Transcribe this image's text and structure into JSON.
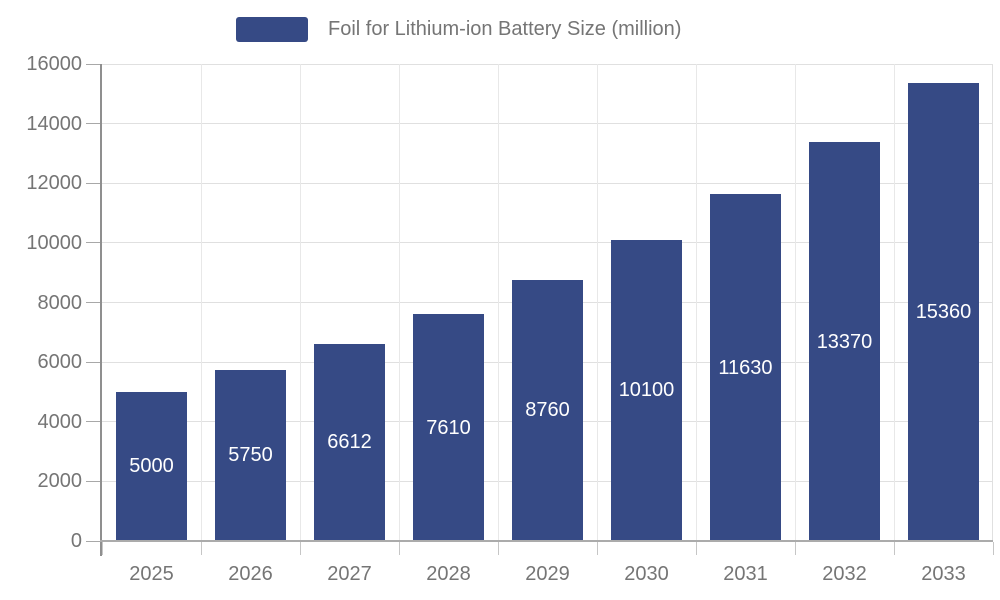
{
  "legend": {
    "items": [
      {
        "label": "Foil for Lithium-ion Battery Size (million)",
        "color": "#364A85"
      }
    ],
    "position": "top-center"
  },
  "chart_data": {
    "type": "bar",
    "title": "",
    "xlabel": "",
    "ylabel": "",
    "series_name": "Foil for Lithium-ion Battery Size (million)",
    "categories": [
      "2025",
      "2026",
      "2027",
      "2028",
      "2029",
      "2030",
      "2031",
      "2032",
      "2033"
    ],
    "values": [
      5000,
      5750,
      6612,
      7610,
      8760,
      10100,
      11630,
      13370,
      15360
    ],
    "value_labels_shown": true,
    "ylim": [
      0,
      16000
    ],
    "yticks": [
      0,
      2000,
      4000,
      6000,
      8000,
      10000,
      12000,
      14000,
      16000
    ],
    "grid": true,
    "legend_position": "top",
    "colors": {
      "bar": "#364A85",
      "value_label": "#FFFFFF",
      "axis_text": "#757575",
      "grid_horizontal": "#E0E0E0",
      "grid_vertical": "#E8E8E8",
      "plot_border": "#E0E0E0",
      "y_axis_line": "#8F8F8F",
      "x_axis_line": "#ABABAB",
      "y_tick": "#A8A8A8",
      "x_tick": "#C6C6C6",
      "background": "#FFFFFF"
    }
  }
}
